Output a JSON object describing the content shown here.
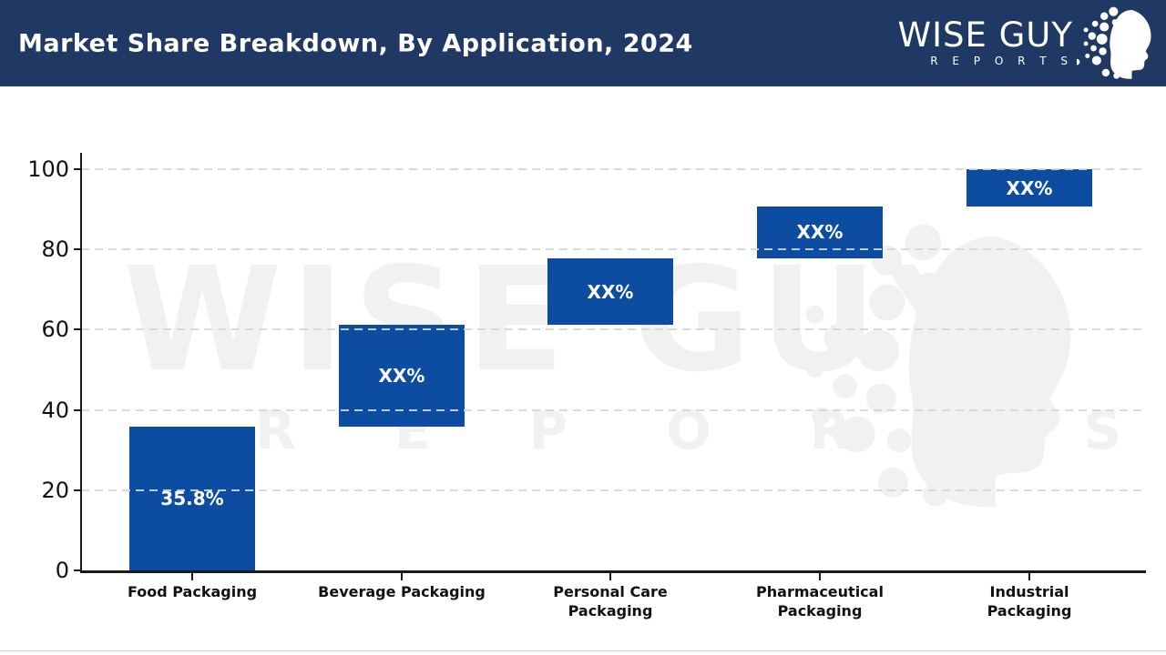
{
  "header": {
    "title": "Market Share Breakdown, By Application, 2024",
    "logo_line1": "WISE GUY",
    "logo_line2": "R E P O R T S"
  },
  "watermark": {
    "line1": "WISE GUY",
    "line2": "R E P O R T S"
  },
  "chart_data": {
    "type": "bar",
    "subtype": "waterfall",
    "title": "Market Share Breakdown, By Application, 2024",
    "categories": [
      "Food Packaging",
      "Beverage Packaging",
      "Personal Care\nPackaging",
      "Pharmaceutical\nPackaging",
      "Industrial\nPackaging"
    ],
    "segments": [
      {
        "category": "Food Packaging",
        "start": 0,
        "end": 35.8,
        "label": "35.8%"
      },
      {
        "category": "Beverage Packaging",
        "start": 35.8,
        "end": 61.2,
        "label": "XX%"
      },
      {
        "category": "Personal Care Packaging",
        "start": 61.2,
        "end": 77.8,
        "label": "XX%"
      },
      {
        "category": "Pharmaceutical Packaging",
        "start": 77.8,
        "end": 90.7,
        "label": "XX%"
      },
      {
        "category": "Industrial Packaging",
        "start": 90.7,
        "end": 100,
        "label": "XX%"
      }
    ],
    "yticks": [
      0,
      20,
      40,
      60,
      80,
      100
    ],
    "ylim": [
      0,
      105
    ],
    "xlabel": "",
    "ylabel": "",
    "legend": "none",
    "grid": "horizontal-dashed",
    "bar_color": "#0c4da2",
    "bar_label_color": "#ffffff"
  },
  "colors": {
    "header_bg": "#203864",
    "bar": "#0c4da2",
    "grid": "#d6d6d6",
    "axis": "#1a1a1a",
    "footer_line": "#cccccc",
    "watermark": "#f1f1f2"
  }
}
